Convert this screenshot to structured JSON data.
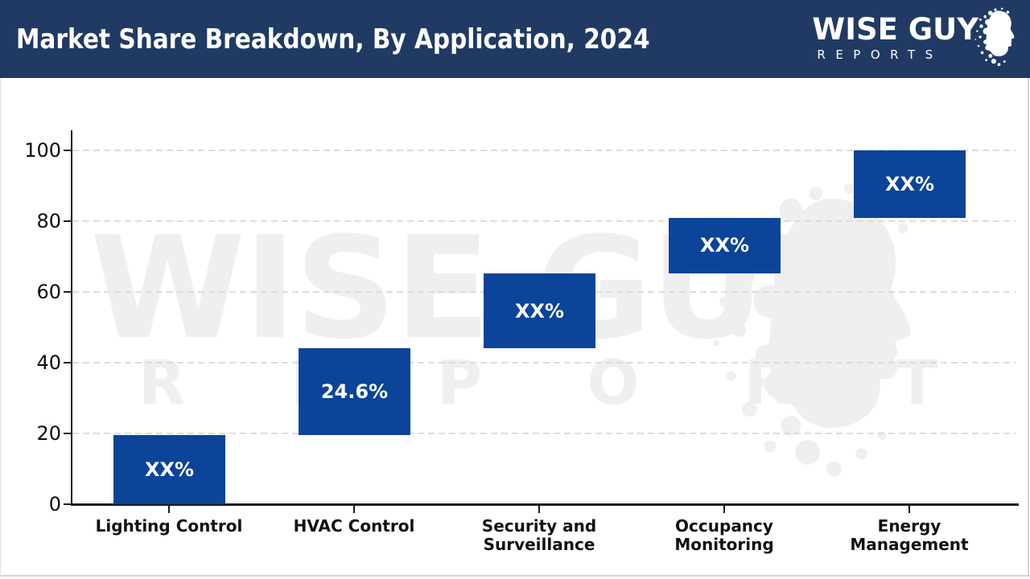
{
  "header": {
    "title": "Market Share Breakdown, By Application, 2024",
    "bg_color": "#203a63",
    "logo": {
      "name": "WISE GUY",
      "sub": "REPORTS"
    }
  },
  "watermark": {
    "line1": "WISE GUY",
    "line2": "R E P O R T S"
  },
  "chart_data": {
    "type": "bar",
    "subtype": "floating-waterfall",
    "title": "Market Share Breakdown, By Application, 2024",
    "categories": [
      "Lighting Control",
      "HVAC Control",
      "Security and\nSurveillance",
      "Occupancy\nMonitoring",
      "Energy Management"
    ],
    "segments": [
      {
        "category": "Lighting Control",
        "start": 0,
        "end": 19.5,
        "label": "XX%"
      },
      {
        "category": "HVAC Control",
        "start": 19.5,
        "end": 44.1,
        "label": "24.6%"
      },
      {
        "category": "Security and Surveillance",
        "start": 44.1,
        "end": 65.2,
        "label": "XX%"
      },
      {
        "category": "Occupancy Monitoring",
        "start": 65.2,
        "end": 81.0,
        "label": "XX%"
      },
      {
        "category": "Energy Management",
        "start": 81.0,
        "end": 100,
        "label": "XX%"
      }
    ],
    "bar_color": "#0b4499",
    "ylim": [
      0,
      100
    ],
    "yticks": [
      0,
      20,
      40,
      60,
      80,
      100
    ],
    "xlabel": "",
    "ylabel": "",
    "grid": "horizontal-dashed",
    "legend": null
  }
}
